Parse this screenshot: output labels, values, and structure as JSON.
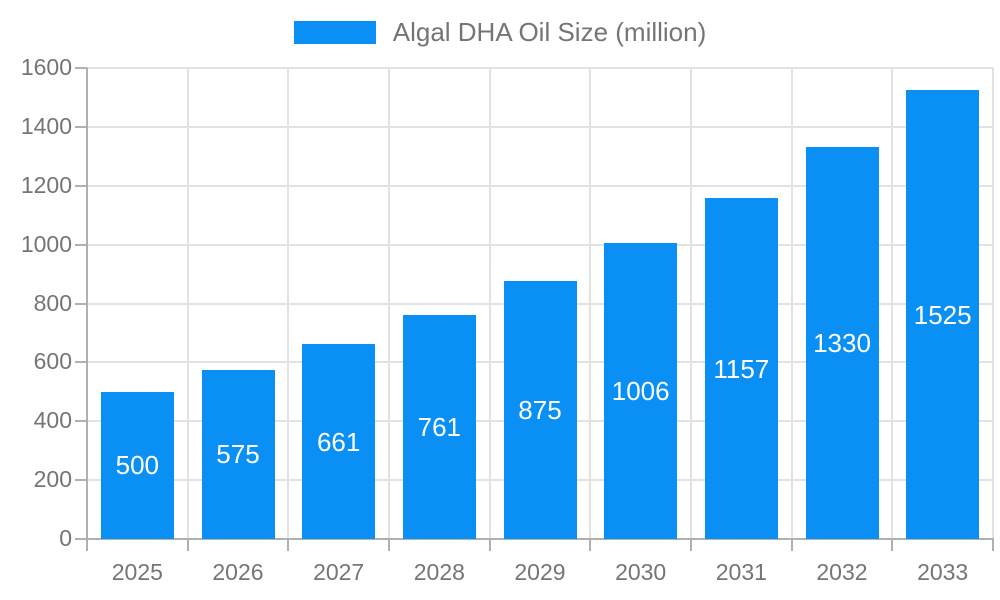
{
  "legend": {
    "label": "Algal DHA Oil Size (million)"
  },
  "chart_data": {
    "type": "bar",
    "title": "Algal DHA Oil Size (million)",
    "series_name": "Algal DHA Oil Size (million)",
    "categories": [
      "2025",
      "2026",
      "2027",
      "2028",
      "2029",
      "2030",
      "2031",
      "2032",
      "2033"
    ],
    "values": [
      500,
      575,
      661,
      761,
      875,
      1006,
      1157,
      1330,
      1525
    ],
    "value_labels": [
      "500",
      "575",
      "661",
      "761",
      "875",
      "1006",
      "1157",
      "1330",
      "1525"
    ],
    "xlabel": "",
    "ylabel": "",
    "ylim": [
      0,
      1600
    ],
    "yticks": [
      0,
      200,
      400,
      600,
      800,
      1000,
      1200,
      1400,
      1600
    ],
    "grid": true,
    "legend_position": "top"
  },
  "colors": {
    "bar": "#0a90f5",
    "grid": "#e2e2e2",
    "axis": "#b0b0b0",
    "tick_label": "#757575",
    "value_label": "#ffffff",
    "background": "#ffffff"
  }
}
